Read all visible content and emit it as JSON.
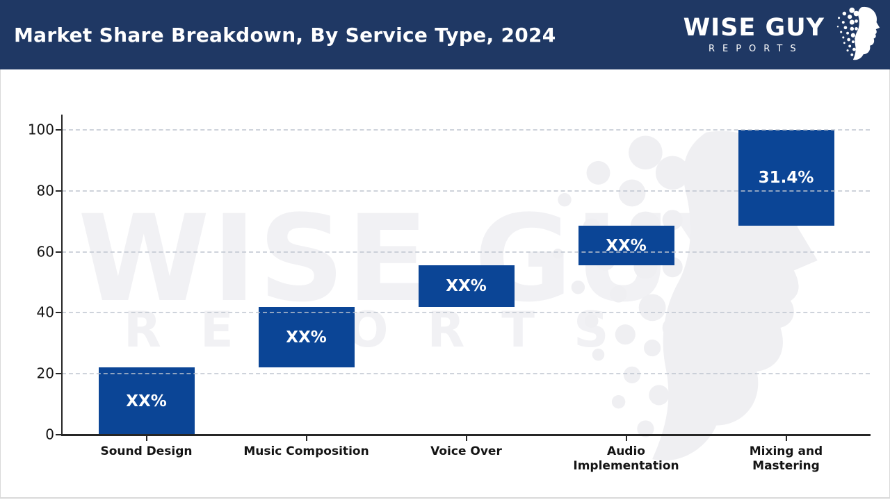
{
  "header": {
    "title": "Market Share Breakdown, By Service Type, 2024",
    "logo": {
      "line1": "WISE GUY",
      "line2": "REPORTS"
    }
  },
  "watermark": {
    "line1": "WISE GUY",
    "line2": "REPORTS"
  },
  "colors": {
    "header_bg": "#1f3864",
    "bar": "#0b4596",
    "bar_label": "#ffffff",
    "grid": "#c2c7cf",
    "axis": "#262626",
    "watermark": "#f1f1f4"
  },
  "chart_data": {
    "type": "bar",
    "subtype": "waterfall-floating-bars",
    "title": "Market Share Breakdown, By Service Type, 2024",
    "xlabel": "",
    "ylabel": "",
    "categories": [
      "Sound Design",
      "Music Composition",
      "Voice Over",
      "Audio Implementation",
      "Mixing and Mastering"
    ],
    "tick_labels": [
      "Sound Design",
      "Music Composition",
      "Voice Over",
      "Audio\nImplementation",
      "Mixing and\nMastering"
    ],
    "bars": [
      {
        "category": "Sound Design",
        "start": 0,
        "end": 22,
        "label": "XX%"
      },
      {
        "category": "Music Composition",
        "start": 22,
        "end": 42,
        "label": "XX%"
      },
      {
        "category": "Voice Over",
        "start": 42,
        "end": 55.5,
        "label": "XX%"
      },
      {
        "category": "Audio Implementation",
        "start": 55.5,
        "end": 68.6,
        "label": "XX%"
      },
      {
        "category": "Mixing and Mastering",
        "start": 68.6,
        "end": 100,
        "label": "31.4%"
      }
    ],
    "yticks": [
      0,
      20,
      40,
      60,
      80,
      100
    ],
    "ylim": [
      0,
      105
    ],
    "grid": "horizontal-dashed",
    "legend": "none",
    "bar_color": "#0b4596",
    "label_color": "#ffffff"
  }
}
